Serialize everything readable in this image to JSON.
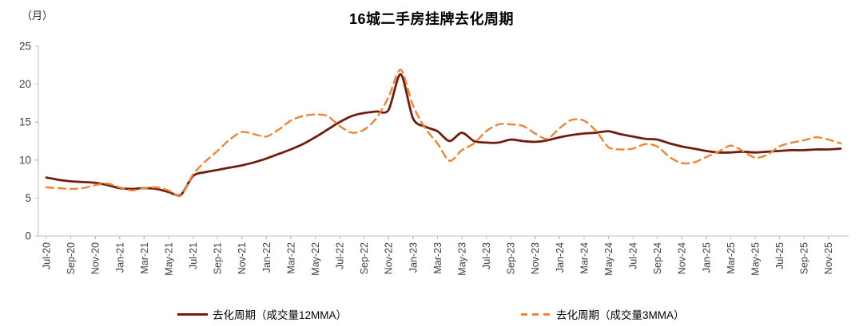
{
  "title": "16城二手房挂牌去化周期",
  "y_unit_label": "（月）",
  "colors": {
    "series_12mma": "#701D10",
    "series_3mma": "#EE8435",
    "axis_line": "#BFBFBF",
    "tick_text": "#404040",
    "title_text": "#000000"
  },
  "chart_data": {
    "type": "line",
    "title": "16城二手房挂牌去化周期",
    "ylabel": "（月）",
    "xlabel": "",
    "ylim": [
      0,
      25
    ],
    "y_tick_step": 5,
    "x_tick_every": 2,
    "grid": false,
    "legend_position": "bottom",
    "x": [
      "Jul-20",
      "Aug-20",
      "Sep-20",
      "Oct-20",
      "Nov-20",
      "Dec-20",
      "Jan-21",
      "Feb-21",
      "Mar-21",
      "Apr-21",
      "May-21",
      "Jun-21",
      "Jul-21",
      "Aug-21",
      "Sep-21",
      "Oct-21",
      "Nov-21",
      "Dec-21",
      "Jan-22",
      "Feb-22",
      "Mar-22",
      "Apr-22",
      "May-22",
      "Jun-22",
      "Jul-22",
      "Aug-22",
      "Sep-22",
      "Oct-22",
      "Nov-22",
      "Dec-22",
      "Jan-23",
      "Feb-23",
      "Mar-23",
      "Apr-23",
      "May-23",
      "Jun-23",
      "Jul-23",
      "Aug-23",
      "Sep-23",
      "Oct-23",
      "Nov-23",
      "Dec-23",
      "Jan-24",
      "Feb-24",
      "Mar-24",
      "Apr-24",
      "May-24",
      "Jun-24",
      "Jul-24",
      "Aug-24",
      "Sep-24",
      "Oct-24",
      "Nov-24",
      "Dec-24",
      "Jan-25",
      "Feb-25",
      "Mar-25",
      "Apr-25",
      "May-25",
      "Jun-25",
      "Jul-25",
      "Aug-25",
      "Sep-25",
      "Oct-25",
      "Nov-25",
      "Dec-25"
    ],
    "series": [
      {
        "name": "去化周期（成交量12MMA）",
        "style": "solid",
        "color": "#701D10",
        "values": [
          7.7,
          7.4,
          7.2,
          7.1,
          7.0,
          6.7,
          6.3,
          6.2,
          6.3,
          6.2,
          5.8,
          5.4,
          7.9,
          8.4,
          8.7,
          9.0,
          9.3,
          9.7,
          10.2,
          10.8,
          11.4,
          12.1,
          13.0,
          14.0,
          15.0,
          15.8,
          16.2,
          16.4,
          16.6,
          21.3,
          15.5,
          14.4,
          13.8,
          12.5,
          13.6,
          12.5,
          12.3,
          12.3,
          12.7,
          12.5,
          12.4,
          12.6,
          13.0,
          13.3,
          13.5,
          13.6,
          13.8,
          13.4,
          13.1,
          12.8,
          12.7,
          12.2,
          11.8,
          11.5,
          11.2,
          11.0,
          11.0,
          11.1,
          11.0,
          11.1,
          11.2,
          11.3,
          11.3,
          11.4,
          11.4,
          11.5
        ]
      },
      {
        "name": "去化周期（成交量3MMA）",
        "style": "dashed",
        "color": "#EE8435",
        "values": [
          6.4,
          6.3,
          6.2,
          6.3,
          6.7,
          6.9,
          6.4,
          6.0,
          6.3,
          6.4,
          6.0,
          5.3,
          8.1,
          9.8,
          11.2,
          12.7,
          13.7,
          13.4,
          13.1,
          14.0,
          15.2,
          15.8,
          16.0,
          15.8,
          14.5,
          13.6,
          14.0,
          15.5,
          18.3,
          21.9,
          17.2,
          14.2,
          12.2,
          9.9,
          11.3,
          12.2,
          13.8,
          14.7,
          14.7,
          14.5,
          13.5,
          12.8,
          14.2,
          15.3,
          15.2,
          13.8,
          11.7,
          11.4,
          11.5,
          12.1,
          11.8,
          10.4,
          9.6,
          9.7,
          10.4,
          11.1,
          11.9,
          11.2,
          10.3,
          10.7,
          11.8,
          12.3,
          12.6,
          13.0,
          12.7,
          12.2
        ]
      }
    ]
  }
}
